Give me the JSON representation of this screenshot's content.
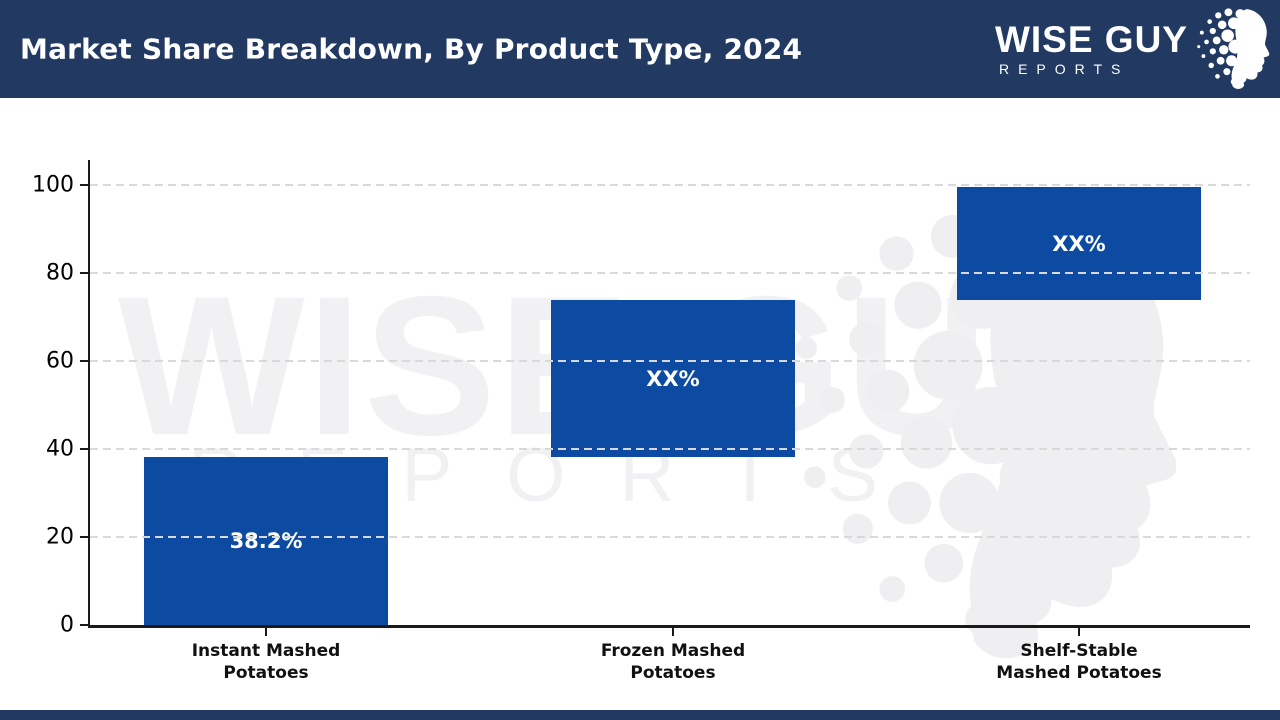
{
  "header": {
    "title": "Market Share Breakdown, By Product Type, 2024",
    "bg_color": "#223962",
    "logo_name": "WISE GUY",
    "logo_sub": "REPORTS"
  },
  "watermark": {
    "word": "WISE GUY",
    "sub": "REPORTS"
  },
  "chart_data": {
    "type": "bar",
    "variant": "stepped-waterfall",
    "title": "Market Share Breakdown, By Product Type, 2024",
    "xlabel": "",
    "ylabel": "",
    "ylim": [
      0,
      105
    ],
    "yticks": [
      0,
      20,
      40,
      60,
      80,
      100
    ],
    "grid": {
      "axis": "y",
      "style": "dashed",
      "color": "#d9d9d9",
      "drawn_over_bars": true
    },
    "bar_color": "#0c4ba1",
    "bar_label_color": "#ffffff",
    "axis_color": "#1a1a1a",
    "bars": [
      {
        "category": [
          "Instant Mashed",
          "Potatoes"
        ],
        "start": 0,
        "end": 38.2,
        "label": "38.2%"
      },
      {
        "category": [
          "Frozen Mashed",
          "Potatoes"
        ],
        "start": 38.2,
        "end": 73.8,
        "label": "XX%"
      },
      {
        "category": [
          "Shelf-Stable",
          "Mashed Potatoes"
        ],
        "start": 73.8,
        "end": 99.5,
        "label": "XX%"
      }
    ]
  },
  "footer": {
    "bar_color": "#223962"
  }
}
